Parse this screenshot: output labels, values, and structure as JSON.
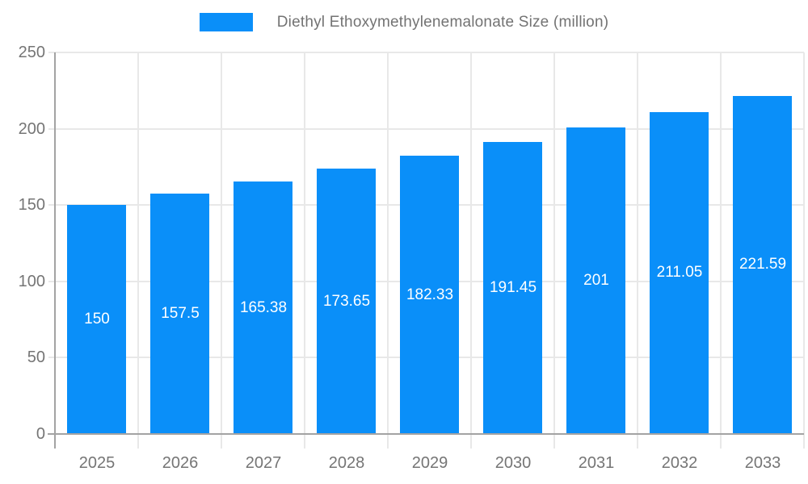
{
  "legend": {
    "label": "Diethyl Ethoxymethylenemalonate Size (million)",
    "swatch_color": "#0a8ff9"
  },
  "chart_data": {
    "type": "bar",
    "title": "Diethyl Ethoxymethylenemalonate Size (million)",
    "categories": [
      "2025",
      "2026",
      "2027",
      "2028",
      "2029",
      "2030",
      "2031",
      "2032",
      "2033"
    ],
    "values": [
      150,
      157.5,
      165.38,
      173.65,
      182.33,
      191.45,
      201,
      211.05,
      221.59
    ],
    "bar_labels": [
      "150",
      "157.5",
      "165.38",
      "173.65",
      "182.33",
      "191.45",
      "201",
      "211.05",
      "221.59"
    ],
    "xlabel": "",
    "ylabel": "",
    "y_ticks": [
      0,
      50,
      100,
      150,
      200,
      250
    ],
    "ylim": [
      0,
      250
    ],
    "grid": true,
    "legend_position": "top",
    "bar_color": "#0a8ff9",
    "bar_label_color": "#ffffff",
    "axis_color": "#a3a3a3",
    "grid_color": "#e8e8e8",
    "tick_label_color": "#757575"
  }
}
